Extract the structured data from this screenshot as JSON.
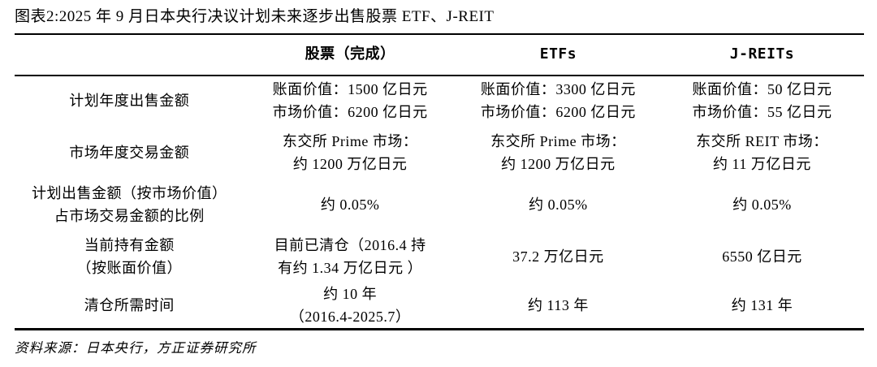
{
  "title": "图表2:2025 年 9 月日本央行决议计划未来逐步出售股票 ETF、J-REIT",
  "source_note": "资料来源：日本央行，方正证券研究所",
  "table": {
    "header": [
      "",
      "股票（完成）",
      "ETFs",
      "J-REITs"
    ],
    "rows": [
      {
        "label": "计划年度出售金额",
        "cells": [
          "账面价值：1500 亿日元\n市场价值：6200 亿日元",
          "账面价值：3300 亿日元\n市场价值：6200 亿日元",
          "账面价值：50 亿日元\n市场价值：55 亿日元"
        ]
      },
      {
        "label": "市场年度交易金额",
        "cells": [
          "东交所 Prime 市场：\n约 1200 万亿日元",
          "东交所 Prime 市场：\n约 1200 万亿日元",
          "东交所 REIT 市场：\n约 11 万亿日元"
        ]
      },
      {
        "label": "计划出售金额（按市场价值）\n占市场交易金额的比例",
        "cells": [
          "约 0.05%",
          "约 0.05%",
          "约 0.05%"
        ]
      },
      {
        "label": "当前持有金额\n（按账面价值）",
        "cells": [
          "目前已清仓（2016.4 持\n有约 1.34 万亿日元 ）",
          "37.2 万亿日元",
          "6550 亿日元"
        ]
      },
      {
        "label": "清仓所需时间",
        "cells": [
          "约 10 年\n（2016.4-2025.7）",
          "约 113 年",
          "约 131 年"
        ]
      }
    ]
  },
  "colors": {
    "text": "#000000",
    "rule": "#000000",
    "background": "#ffffff"
  }
}
